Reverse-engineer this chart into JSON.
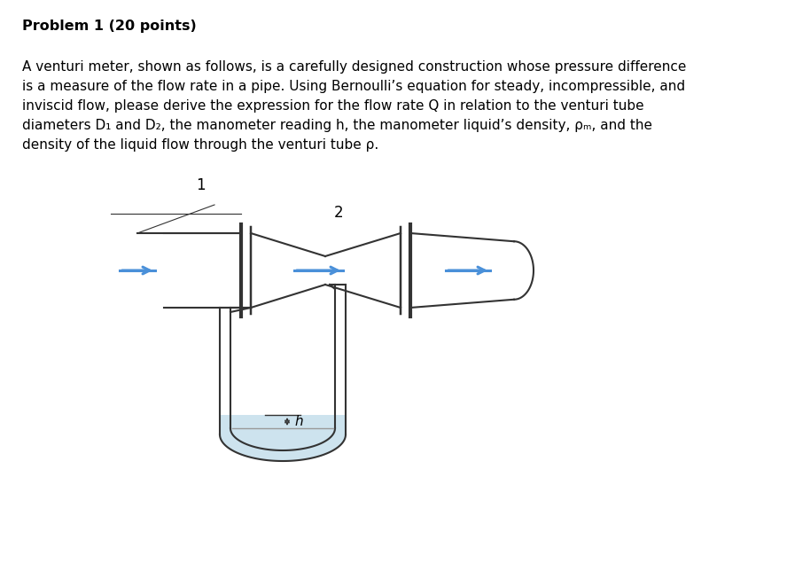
{
  "title": "Problem 1 (20 points)",
  "line1": "A venturi meter, shown as follows, is a carefully designed construction whose pressure difference",
  "line2": "is a measure of the flow rate in a pipe. Using Bernoulli’s equation for steady, incompressible, and",
  "line3": "inviscid flow, please derive the expression for the flow rate Q in relation to the venturi tube",
  "line4": "diameters D₁ and D₂, the manometer reading h, the manometer liquid’s density, ρₘ, and the",
  "line5": "density of the liquid flow through the venturi tube ρ.",
  "bg_color": "#ffffff",
  "text_color": "#000000",
  "blue_color": "#4a90d9",
  "line_color": "#333333",
  "water_color": "#b8d8e8",
  "water_alpha": 0.7,
  "pipe_gray": "#cccccc",
  "fig_width": 8.88,
  "fig_height": 6.35,
  "dpi": 100
}
